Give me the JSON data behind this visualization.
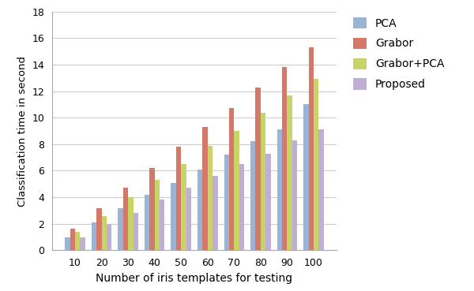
{
  "categories": [
    10,
    20,
    30,
    40,
    50,
    60,
    70,
    80,
    90,
    100
  ],
  "series": {
    "PCA": [
      1.0,
      2.1,
      3.2,
      4.2,
      5.1,
      6.1,
      7.2,
      8.2,
      9.1,
      11.0
    ],
    "Grabor": [
      1.6,
      3.2,
      4.7,
      6.2,
      7.8,
      9.3,
      10.7,
      12.3,
      13.8,
      15.3
    ],
    "Grabor+PCA": [
      1.4,
      2.6,
      4.0,
      5.3,
      6.5,
      7.9,
      9.0,
      10.4,
      11.7,
      12.9
    ],
    "Proposed": [
      1.0,
      2.0,
      2.8,
      3.8,
      4.7,
      5.6,
      6.5,
      7.3,
      8.3,
      9.1
    ]
  },
  "colors": {
    "PCA": "#9cb4d4",
    "Grabor": "#d4796a",
    "Grabor+PCA": "#c8d468",
    "Proposed": "#c0afd4"
  },
  "xlabel": "Number of iris templates for testing",
  "ylabel": "Classification time in second",
  "ylim": [
    0,
    18
  ],
  "yticks": [
    0,
    2,
    4,
    6,
    8,
    10,
    12,
    14,
    16,
    18
  ],
  "bar_width": 0.19,
  "legend_labels": [
    "PCA",
    "Grabor",
    "Grabor+PCA",
    "Proposed"
  ],
  "background_color": "#ffffff",
  "grid_color": "#cccccc"
}
